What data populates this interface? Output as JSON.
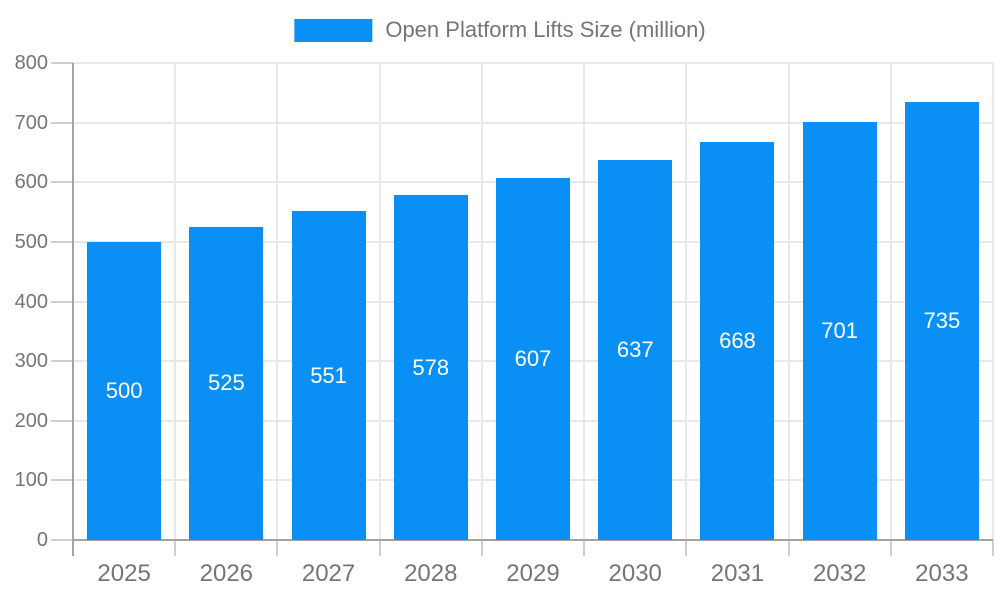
{
  "chart_data": {
    "type": "bar",
    "title": "",
    "legend": "Open Platform Lifts Size (million)",
    "categories": [
      "2025",
      "2026",
      "2027",
      "2028",
      "2029",
      "2030",
      "2031",
      "2032",
      "2033"
    ],
    "values": [
      500,
      525,
      551,
      578,
      607,
      637,
      668,
      701,
      735
    ],
    "xlabel": "",
    "ylabel": "",
    "ylim": [
      0,
      800
    ],
    "yticks": [
      0,
      100,
      200,
      300,
      400,
      500,
      600,
      700,
      800
    ],
    "grid": true,
    "legend_position": "top-center",
    "colors": {
      "bar": "#0A90F5",
      "bar_label": "#ffffff",
      "axis_text": "#757575",
      "legend_text": "#757575",
      "gridline": "#e8e8e8",
      "tick": "#cfcfcf",
      "axis_line": "#a3a3a3"
    }
  }
}
